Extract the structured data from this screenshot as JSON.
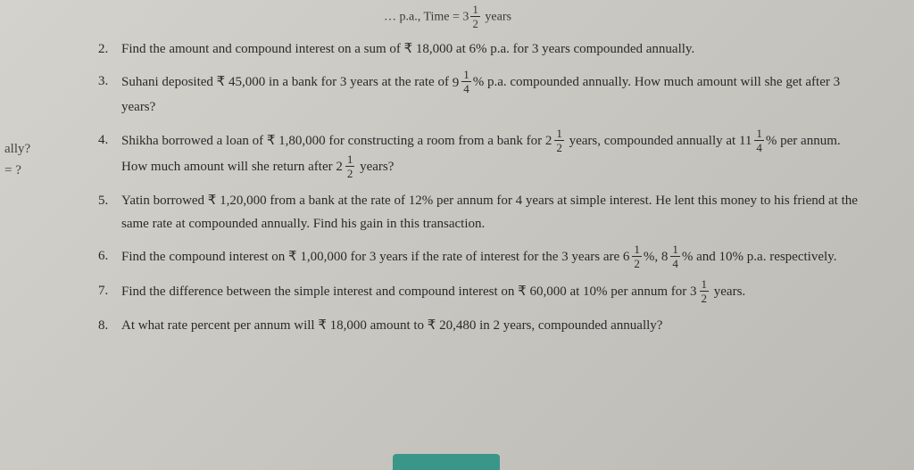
{
  "side": {
    "label1": "ally?",
    "label2": "= ?"
  },
  "partial": {
    "text": "… p.a., Time = 3",
    "frac_num": "1",
    "frac_den": "2",
    "suffix": " years"
  },
  "questions": [
    {
      "num": "2.",
      "parts": [
        {
          "t": "Find the amount and compound interest on a sum of ₹ 18,000 at 6% p.a. for 3 years compounded annually."
        }
      ]
    },
    {
      "num": "3.",
      "parts": [
        {
          "t": "Suhani deposited ₹ 45,000 in a bank for 3 years at the rate of "
        },
        {
          "mixed": {
            "whole": "9",
            "num": "1",
            "den": "4"
          }
        },
        {
          "t": "% p.a. compounded annually. How much amount will she get after 3 years?"
        }
      ]
    },
    {
      "num": "4.",
      "parts": [
        {
          "t": "Shikha borrowed a loan of ₹ 1,80,000 for constructing a room from a bank for "
        },
        {
          "mixed": {
            "whole": "2",
            "num": "1",
            "den": "2"
          }
        },
        {
          "t": " years, compounded annually at "
        },
        {
          "mixed": {
            "whole": "11",
            "num": "1",
            "den": "4"
          }
        },
        {
          "t": "% per annum. How much amount will she return after "
        },
        {
          "mixed": {
            "whole": "2",
            "num": "1",
            "den": "2"
          }
        },
        {
          "t": " years?"
        }
      ]
    },
    {
      "num": "5.",
      "parts": [
        {
          "t": "Yatin borrowed ₹ 1,20,000 from a bank at the rate of 12% per annum for 4 years at simple interest. He lent this money to his friend at the same rate at compounded annually. Find his gain in this transaction."
        }
      ]
    },
    {
      "num": "6.",
      "parts": [
        {
          "t": "Find the compound interest on ₹ 1,00,000 for 3 years if the rate of interest for the 3 years are "
        },
        {
          "mixed": {
            "whole": "6",
            "num": "1",
            "den": "2"
          }
        },
        {
          "t": "%, "
        },
        {
          "mixed": {
            "whole": "8",
            "num": "1",
            "den": "4"
          }
        },
        {
          "t": "% and 10% p.a. respectively."
        }
      ]
    },
    {
      "num": "7.",
      "parts": [
        {
          "t": "Find the difference between the simple interest and compound interest on ₹ 60,000 at 10% per annum for "
        },
        {
          "mixed": {
            "whole": "3",
            "num": "1",
            "den": "2"
          }
        },
        {
          "t": " years."
        }
      ]
    },
    {
      "num": "8.",
      "parts": [
        {
          "t": "At what rate percent per annum will ₹ 18,000 amount to ₹ 20,480 in 2 years, compounded annually?"
        }
      ]
    }
  ],
  "colors": {
    "text": "#2a2a2a",
    "background_light": "#d4d2cc",
    "background_dark": "#bcbab4",
    "button": "#3a9688"
  }
}
